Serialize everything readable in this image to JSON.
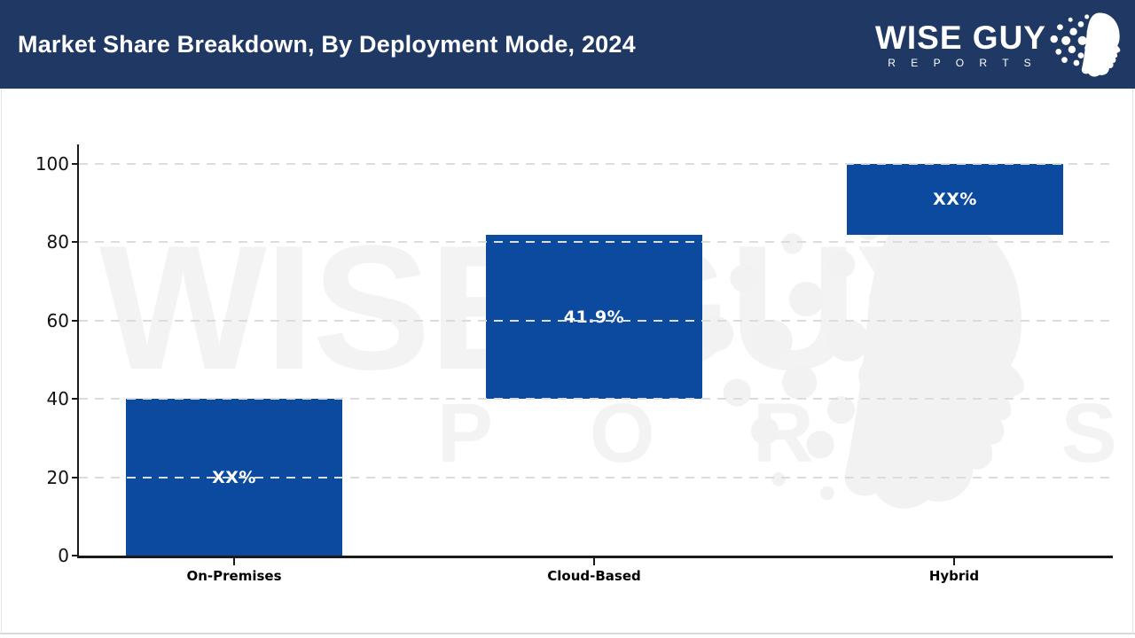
{
  "header": {
    "title": "Market Share Breakdown, By Deployment Mode, 2024",
    "logo": {
      "line1": "WISE GUY",
      "line2": "R E P O R T S"
    }
  },
  "watermark": {
    "line1": "WISE GUY",
    "line2": "R E P O R T S"
  },
  "colors": {
    "header_bg": "#1F3864",
    "bar": "#0B4A9E",
    "gridline": "#DCDCDC",
    "axis": "#1A1A1A",
    "bar_label": "#FFFFFF",
    "watermark": "#F3F3F3"
  },
  "chart_data": {
    "type": "bar",
    "subtype": "floating-breakdown-bars",
    "title": "Market Share Breakdown, By Deployment Mode, 2024",
    "xlabel": "",
    "ylabel": "",
    "categories": [
      "On-Premises",
      "Cloud-Based",
      "Hybrid"
    ],
    "bars": [
      {
        "category": "On-Premises",
        "from": 0,
        "to": 40,
        "value_label": "XX%"
      },
      {
        "category": "Cloud-Based",
        "from": 40,
        "to": 81.9,
        "value_label": "41.9%"
      },
      {
        "category": "Hybrid",
        "from": 81.9,
        "to": 100,
        "value_label": "XX%"
      }
    ],
    "yticks": [
      0,
      20,
      40,
      60,
      80,
      100
    ],
    "ylim": [
      0,
      105
    ],
    "grid": "horizontal dashed, drawn over bars",
    "legend": "none",
    "bar_color": "#0B4A9E",
    "label_color": "#FFFFFF"
  }
}
